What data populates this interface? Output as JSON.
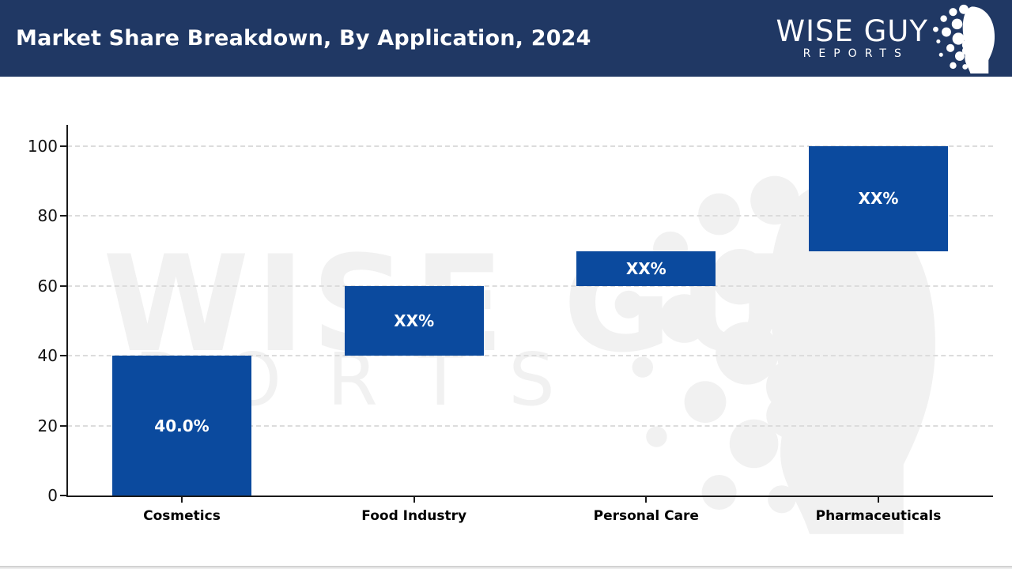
{
  "header": {
    "title": "Market Share Breakdown, By Application, 2024",
    "logo": {
      "line1": "WISE GUY",
      "line2": "REPORTS"
    }
  },
  "watermark": {
    "line1": "WISE GU",
    "line2": "PORTS"
  },
  "chart_data": {
    "type": "bar",
    "subtype": "waterfall",
    "title": "Market Share Breakdown, By Application, 2024",
    "categories": [
      "Cosmetics",
      "Food Industry",
      "Personal Care",
      "Pharmaceuticals"
    ],
    "segments": [
      {
        "category": "Cosmetics",
        "start": 0,
        "end": 40,
        "value": 40,
        "label": "40.0%"
      },
      {
        "category": "Food Industry",
        "start": 40,
        "end": 60,
        "value": 20,
        "label": "XX%"
      },
      {
        "category": "Personal Care",
        "start": 60,
        "end": 70,
        "value": 10,
        "label": "XX%"
      },
      {
        "category": "Pharmaceuticals",
        "start": 70,
        "end": 100,
        "value": 30,
        "label": "XX%"
      }
    ],
    "xlabel": "",
    "ylabel": "",
    "yticks": [
      0,
      20,
      40,
      60,
      80,
      100
    ],
    "ylim": [
      0,
      105
    ],
    "grid": true,
    "grid_style": "dashed",
    "legend": false,
    "bar_color": "#0b4a9e",
    "bar_label_color": "#ffffff",
    "axis_color": "#1a1a1a",
    "grid_color": "#dcdcdc"
  },
  "colors": {
    "header_bg": "#203864",
    "accent_blue": "#0b4a9e",
    "watermark": "#f1f1f1"
  }
}
